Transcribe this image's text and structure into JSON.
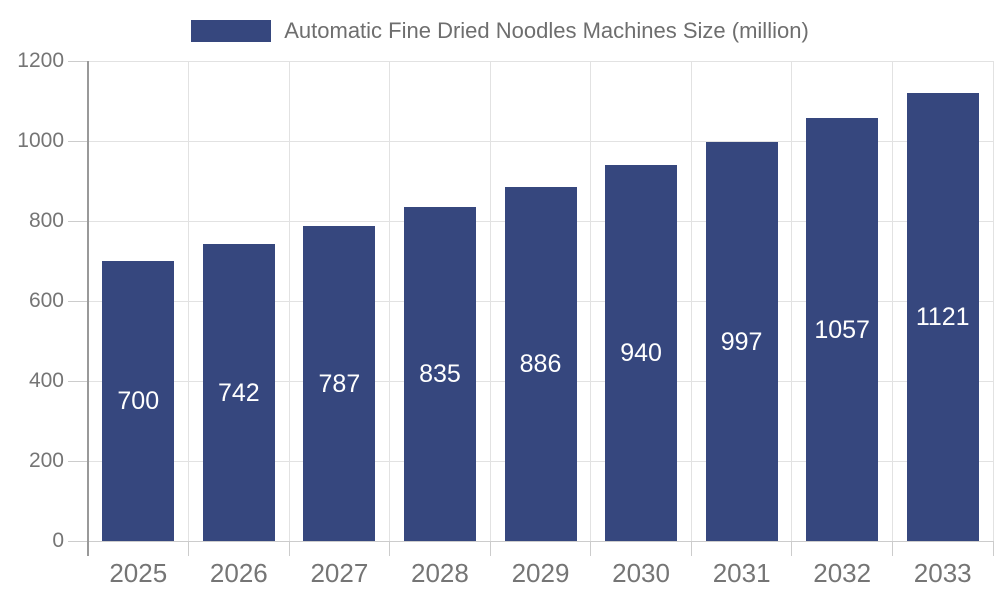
{
  "legend": {
    "label": "Automatic Fine Dried Noodles Machines Size (million)",
    "swatch_color": "#36477e"
  },
  "chart_data": {
    "type": "bar",
    "title": "Automatic Fine Dried Noodles Machines Size (million)",
    "categories": [
      "2025",
      "2026",
      "2027",
      "2028",
      "2029",
      "2030",
      "2031",
      "2032",
      "2033"
    ],
    "values": [
      700,
      742,
      787,
      835,
      886,
      940,
      997,
      1057,
      1121
    ],
    "xlabel": "",
    "ylabel": "",
    "ylim": [
      0,
      1200
    ],
    "y_ticks": [
      0,
      200,
      400,
      600,
      800,
      1000,
      1200
    ],
    "grid": true,
    "legend_position": "top-center",
    "value_labels": "inside-center",
    "colors": {
      "bar": "#36477e",
      "value_label": "#ffffff",
      "axis_tick_label": "#757575",
      "legend_text": "#6e6e6e",
      "gridline": "#e2e2e2",
      "tick": "#cccccc",
      "axis_spine": "#999999",
      "background": "#ffffff"
    }
  }
}
